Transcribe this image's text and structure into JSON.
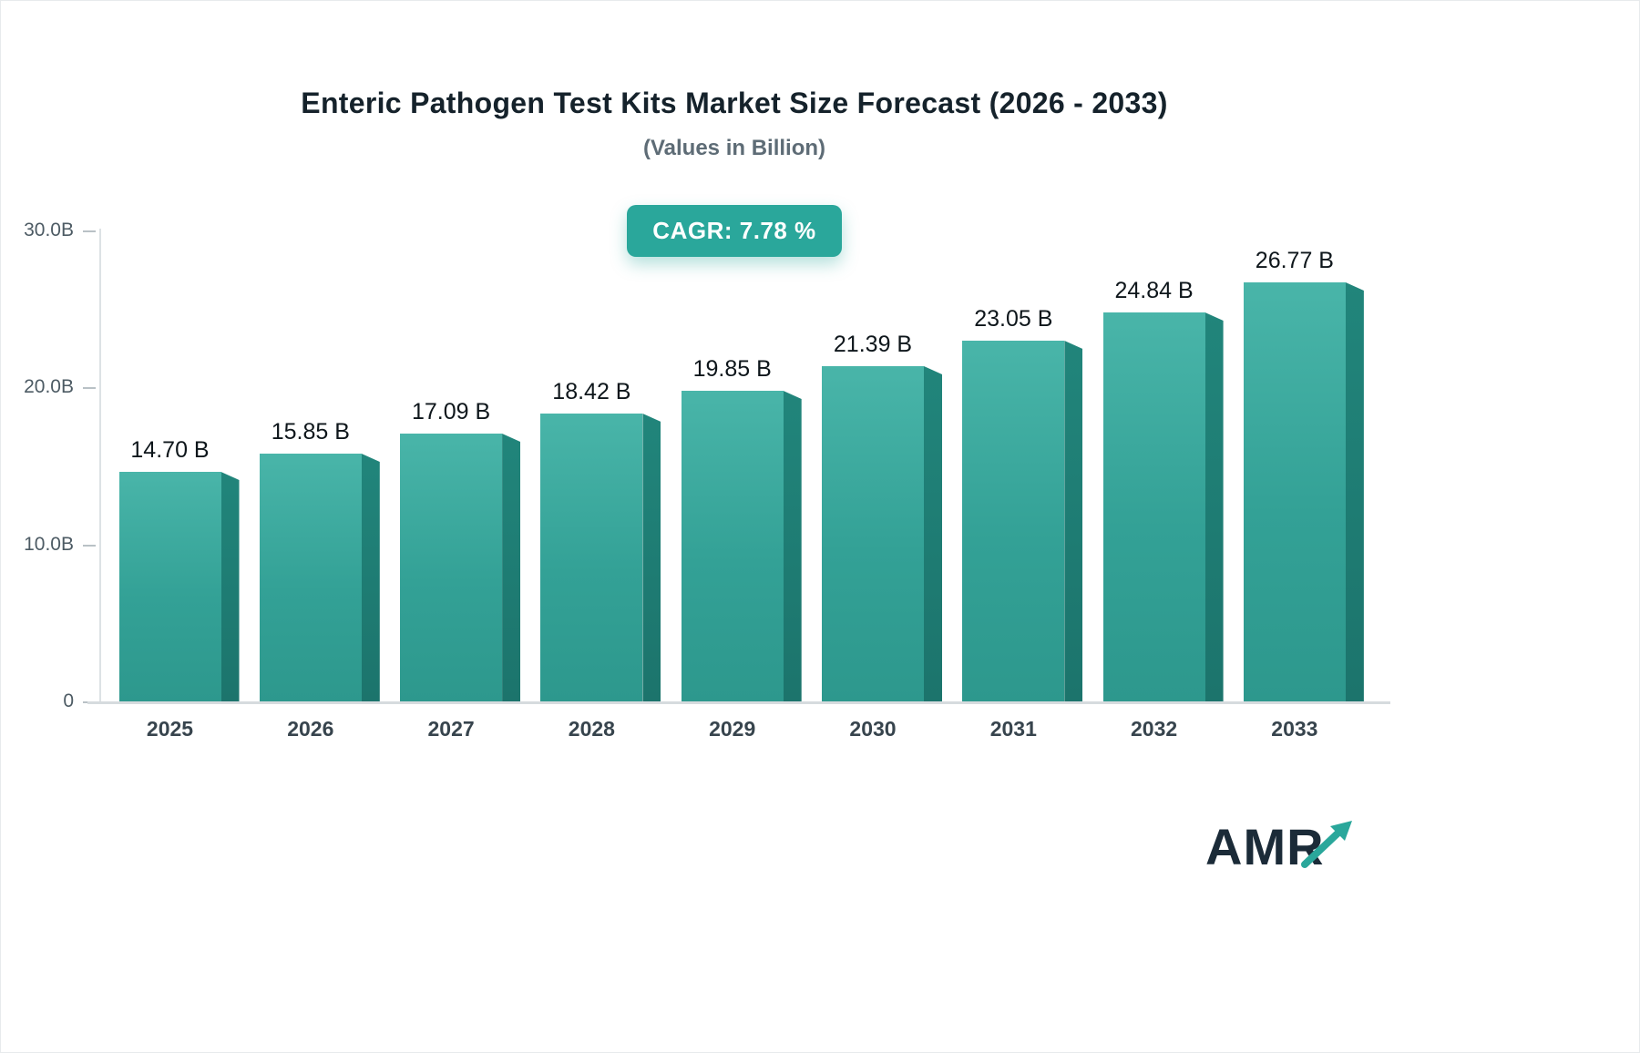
{
  "chart_data": {
    "type": "bar",
    "title": "Enteric Pathogen Test Kits Market Size Forecast (2026 - 2033)",
    "subtitle": "(Values in Billion)",
    "cagr_badge": "CAGR: 7.78 %",
    "categories": [
      "2025",
      "2026",
      "2027",
      "2028",
      "2029",
      "2030",
      "2031",
      "2032",
      "2033"
    ],
    "values": [
      14.7,
      15.85,
      17.09,
      18.42,
      19.85,
      21.39,
      23.05,
      24.84,
      26.77
    ],
    "value_labels": [
      "14.70 B",
      "15.85 B",
      "17.09 B",
      "18.42 B",
      "19.85 B",
      "21.39 B",
      "23.05 B",
      "24.84 B",
      "26.77 B"
    ],
    "xlabel": "",
    "ylabel": "",
    "ylim": [
      0,
      30
    ],
    "yticks": [
      {
        "value": 0,
        "label": "0"
      },
      {
        "value": 10,
        "label": "10.0B"
      },
      {
        "value": 20,
        "label": "20.0B"
      },
      {
        "value": 30,
        "label": "30.0B"
      }
    ],
    "grid": false,
    "legend_position": "none",
    "bar_color_top": "#49b5a9",
    "bar_color_bottom": "#2d988d",
    "bar_side_color": "#1f7d74",
    "accent_color": "#2aa79b"
  },
  "branding": {
    "logo_text": "AMR"
  }
}
